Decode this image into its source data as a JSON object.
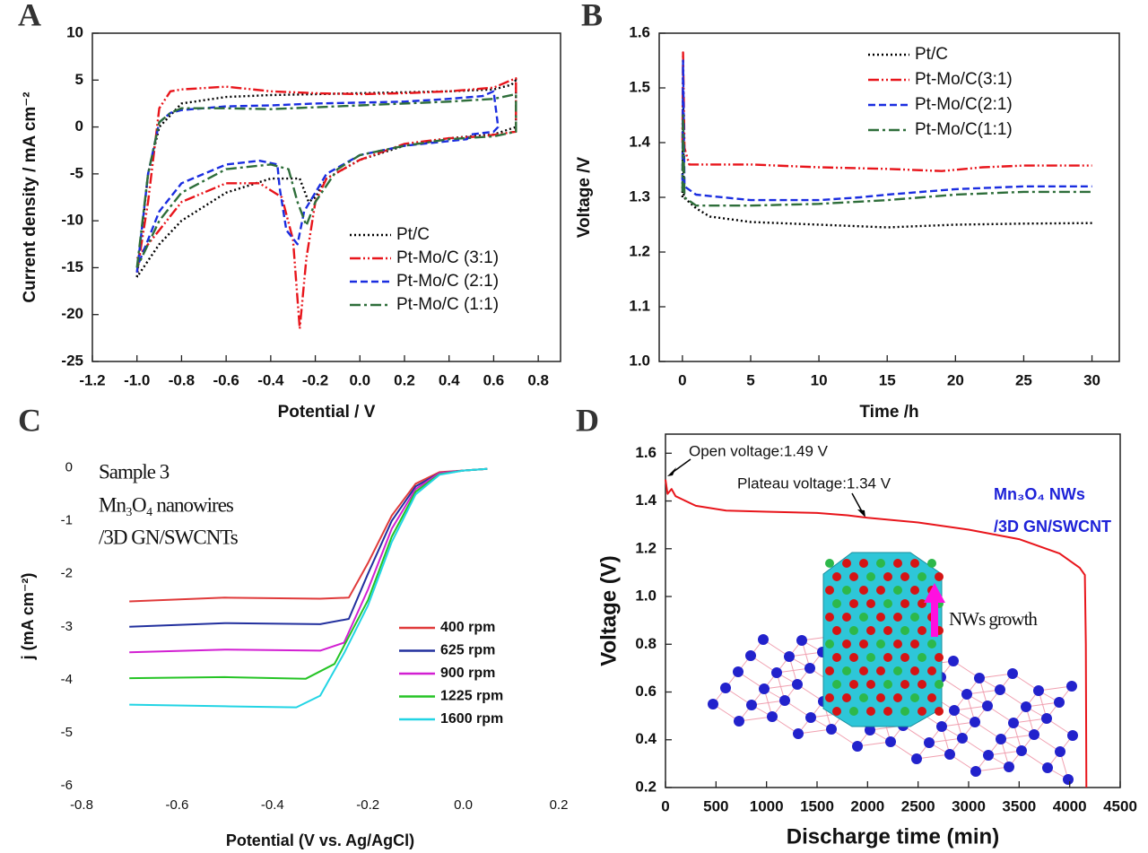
{
  "chart_data": [
    {
      "type": "line",
      "panel": "A",
      "frame": true,
      "legend": "lower right",
      "xlabel": "Potential / V",
      "ylabel": "Current density / mA cm⁻²",
      "xlim": [
        -1.2,
        0.9
      ],
      "ylim": [
        -25,
        10
      ],
      "xticks": [
        -1.2,
        {
          "value": -1,
          "label": "-1.0"
        },
        -0.8,
        -0.6,
        -0.4,
        -0.2,
        {
          "value": 0,
          "label": "0.0"
        },
        0.2,
        0.4,
        0.6,
        0.8
      ],
      "yticks": [
        10,
        5,
        0,
        -5,
        -10,
        -15,
        -20,
        -25
      ],
      "series": [
        {
          "name": "Pt/C",
          "color": "#000000",
          "line_style": "dotted",
          "x": [
            -1.0,
            -0.95,
            -0.9,
            -0.8,
            -0.6,
            -0.4,
            -0.2,
            0,
            0.2,
            0.4,
            0.6,
            0.68,
            0.7,
            0.7,
            0.6,
            0.4,
            0.2,
            0,
            -0.15,
            -0.2,
            -0.23,
            -0.27,
            -0.4,
            -0.6,
            -0.8,
            -0.9,
            -1.0
          ],
          "values": [
            -16,
            -5,
            0,
            2.5,
            3.2,
            3.4,
            3.5,
            3.6,
            3.7,
            3.8,
            4.0,
            4.5,
            5,
            0,
            -0.8,
            -1.2,
            -2,
            -3.5,
            -5.5,
            -7.5,
            -8,
            -5.5,
            -5.5,
            -7,
            -10,
            -12.5,
            -16
          ]
        },
        {
          "name": "Pt-Mo/C (3:1)",
          "color": "#e8151b",
          "line_style": "dashdotdot",
          "x": [
            -1.0,
            -0.95,
            -0.9,
            -0.85,
            -0.8,
            -0.6,
            -0.4,
            -0.2,
            0,
            0.2,
            0.4,
            0.6,
            0.7,
            0.7,
            0.55,
            0.4,
            0.2,
            0,
            -0.15,
            -0.2,
            -0.24,
            -0.27,
            -0.3,
            -0.35,
            -0.45,
            -0.6,
            -0.8,
            -0.9,
            -1.0
          ],
          "values": [
            -15.5,
            -8,
            2,
            3.8,
            4,
            4.3,
            3.8,
            3.6,
            3.5,
            3.6,
            3.8,
            4.2,
            5.2,
            -0.5,
            -1,
            -1.2,
            -1.8,
            -3.5,
            -5.5,
            -8,
            -14,
            -21.5,
            -12,
            -7.5,
            -6,
            -6,
            -8,
            -11,
            -14
          ]
        },
        {
          "name": "Pt-Mo/C (2:1)",
          "color": "#1a2de0",
          "line_style": "dashed",
          "x": [
            -1.0,
            -0.95,
            -0.9,
            -0.85,
            -0.8,
            -0.6,
            -0.4,
            -0.2,
            0,
            0.2,
            0.4,
            0.55,
            0.6,
            0.62,
            0.6,
            0.5,
            0.48,
            0.4,
            0.2,
            0,
            -0.15,
            -0.2,
            -0.25,
            -0.28,
            -0.33,
            -0.36,
            -0.37,
            -0.45,
            -0.6,
            -0.8,
            -0.9,
            -1.0
          ],
          "values": [
            -15.5,
            -5,
            0.5,
            1.5,
            1.8,
            2.2,
            2.3,
            2.5,
            2.6,
            2.7,
            3,
            3.3,
            3.8,
            0,
            -0.5,
            -0.8,
            -1.3,
            -1.5,
            -2,
            -3,
            -5,
            -7,
            -9,
            -12.5,
            -11,
            -6.5,
            -4,
            -3.6,
            -4,
            -6,
            -9,
            -15
          ]
        },
        {
          "name": "Pt-Mo/C (1:1)",
          "color": "#2e6e3a",
          "line_style": "dashdot",
          "x": [
            -1.0,
            -0.95,
            -0.9,
            -0.85,
            -0.8,
            -0.6,
            -0.4,
            -0.2,
            0,
            0.2,
            0.4,
            0.6,
            0.7,
            0.7,
            0.6,
            0.4,
            0.2,
            0,
            -0.1,
            -0.2,
            -0.24,
            -0.28,
            -0.32,
            -0.4,
            -0.6,
            -0.8,
            -0.9,
            -1.0
          ],
          "values": [
            -15,
            -5,
            0.5,
            1.5,
            2,
            2,
            1.9,
            2.1,
            2.3,
            2.5,
            2.7,
            3,
            3.5,
            -0.5,
            -1,
            -1.3,
            -2,
            -3,
            -4.5,
            -8,
            -10.5,
            -8,
            -4.5,
            -4,
            -4.5,
            -7,
            -10,
            -15
          ]
        }
      ]
    },
    {
      "type": "line",
      "panel": "B",
      "frame": true,
      "legend": "upper right",
      "xlabel": "Time /h",
      "ylabel": "Voltage /V",
      "xlim": [
        -1.7,
        32
      ],
      "ylim": [
        1.0,
        1.6
      ],
      "xticks": [
        0,
        5,
        10,
        15,
        20,
        25,
        30
      ],
      "yticks": [
        {
          "value": 1,
          "label": "1.0"
        },
        1.1,
        1.2,
        1.3,
        1.4,
        1.5,
        1.6
      ],
      "series": [
        {
          "name": "Pt/C",
          "color": "#000000",
          "line_style": "dotted",
          "x": [
            0,
            0.05,
            0.1,
            1,
            2,
            5,
            10,
            15,
            20,
            25,
            30
          ],
          "values": [
            1.3,
            1.5,
            1.3,
            1.28,
            1.265,
            1.255,
            1.25,
            1.245,
            1.25,
            1.252,
            1.253
          ]
        },
        {
          "name": "Pt-Mo/C(3:1)",
          "color": "#e8151b",
          "line_style": "dashdotdot",
          "x": [
            0,
            0.05,
            0.15,
            0.5,
            5,
            10,
            15,
            19,
            22,
            25,
            30
          ],
          "values": [
            1.4,
            1.565,
            1.39,
            1.36,
            1.36,
            1.355,
            1.352,
            1.348,
            1.355,
            1.358,
            1.358
          ]
        },
        {
          "name": "Pt-Mo/C(2:1)",
          "color": "#1a2de0",
          "line_style": "dashed",
          "x": [
            0,
            0.05,
            0.15,
            1,
            5,
            10,
            13,
            15,
            20,
            25,
            30
          ],
          "values": [
            1.33,
            1.55,
            1.32,
            1.305,
            1.295,
            1.295,
            1.3,
            1.305,
            1.315,
            1.32,
            1.32
          ]
        },
        {
          "name": "Pt-Mo/C(1:1)",
          "color": "#2e6e3a",
          "line_style": "dashdot",
          "x": [
            0,
            0.05,
            0.15,
            1,
            5,
            10,
            15,
            20,
            25,
            30
          ],
          "values": [
            1.31,
            1.45,
            1.3,
            1.285,
            1.285,
            1.288,
            1.295,
            1.305,
            1.31,
            1.31
          ]
        }
      ]
    },
    {
      "type": "line",
      "panel": "C",
      "frame": false,
      "legend": "center right",
      "xlabel": "Potential (V vs. Ag/AgCl)",
      "ylabel": "j (mA cm⁻²)",
      "annotations": [
        "Sample 3",
        "Mn₃O₄ nanowires",
        "/3D GN/SWCNTs"
      ],
      "xlim": [
        -0.8,
        0.2
      ],
      "ylim": [
        -6,
        0.4
      ],
      "xticks": [
        -0.8,
        -0.6,
        -0.4,
        -0.2,
        {
          "value": 0,
          "label": "0.0"
        },
        0.2
      ],
      "yticks": [
        0,
        -1,
        -2,
        -3,
        -4,
        -5,
        -6
      ],
      "series": [
        {
          "name": "400 rpm",
          "color": "#e03a3a",
          "line_style": "solid",
          "x": [
            -0.7,
            -0.5,
            -0.3,
            -0.24,
            -0.2,
            -0.15,
            -0.1,
            -0.05,
            0,
            0.05
          ],
          "values": [
            -2.52,
            -2.45,
            -2.47,
            -2.45,
            -1.8,
            -0.9,
            -0.3,
            -0.08,
            -0.05,
            -0.02
          ]
        },
        {
          "name": "625 rpm",
          "color": "#22309e",
          "line_style": "solid",
          "x": [
            -0.7,
            -0.5,
            -0.3,
            -0.24,
            -0.2,
            -0.15,
            -0.1,
            -0.05,
            0,
            0.05
          ],
          "values": [
            -3.0,
            -2.93,
            -2.95,
            -2.85,
            -2.0,
            -1.0,
            -0.35,
            -0.1,
            -0.05,
            -0.02
          ]
        },
        {
          "name": "900 rpm",
          "color": "#d21fd2",
          "line_style": "solid",
          "x": [
            -0.7,
            -0.5,
            -0.3,
            -0.25,
            -0.2,
            -0.15,
            -0.1,
            -0.05,
            0,
            0.05
          ],
          "values": [
            -3.48,
            -3.43,
            -3.45,
            -3.3,
            -2.3,
            -1.15,
            -0.4,
            -0.1,
            -0.05,
            -0.02
          ]
        },
        {
          "name": "1225 rpm",
          "color": "#25c425",
          "line_style": "solid",
          "x": [
            -0.7,
            -0.5,
            -0.33,
            -0.27,
            -0.2,
            -0.15,
            -0.1,
            -0.05,
            0,
            0.05
          ],
          "values": [
            -3.97,
            -3.95,
            -3.98,
            -3.7,
            -2.5,
            -1.3,
            -0.45,
            -0.12,
            -0.05,
            -0.02
          ]
        },
        {
          "name": "1600 rpm",
          "color": "#22d4e4",
          "line_style": "solid",
          "x": [
            -0.7,
            -0.5,
            -0.35,
            -0.3,
            -0.25,
            -0.2,
            -0.15,
            -0.1,
            -0.05,
            0,
            0.05
          ],
          "values": [
            -4.47,
            -4.5,
            -4.52,
            -4.3,
            -3.5,
            -2.6,
            -1.4,
            -0.5,
            -0.13,
            -0.05,
            -0.02
          ]
        }
      ]
    },
    {
      "type": "line",
      "panel": "D",
      "frame": true,
      "xlabel": "Discharge time (min)",
      "ylabel": "Voltage (V)",
      "annotations": [
        "Open voltage:1.49 V",
        "Plateau voltage:1.34 V",
        "Mn₃O₄ NWs",
        "/3D GN/SWCNT",
        "NWs growth"
      ],
      "xlim": [
        0,
        4500
      ],
      "ylim": [
        0.2,
        1.68
      ],
      "xticks": [
        0,
        500,
        1000,
        1500,
        2000,
        2500,
        3000,
        3500,
        4000,
        4500
      ],
      "yticks": [
        0.2,
        0.4,
        0.6,
        0.8,
        {
          "value": 1,
          "label": "1.0"
        },
        1.2,
        1.4,
        1.6
      ],
      "series": [
        {
          "color": "#e8151b",
          "line_style": "solid",
          "x": [
            0,
            20,
            60,
            100,
            300,
            600,
            1000,
            1500,
            1800,
            2000,
            2500,
            3000,
            3500,
            3900,
            4100,
            4150,
            4160,
            4165
          ],
          "values": [
            1.49,
            1.43,
            1.45,
            1.42,
            1.38,
            1.36,
            1.355,
            1.35,
            1.34,
            1.33,
            1.31,
            1.28,
            1.24,
            1.18,
            1.12,
            1.09,
            0.8,
            0.2
          ]
        }
      ]
    }
  ]
}
